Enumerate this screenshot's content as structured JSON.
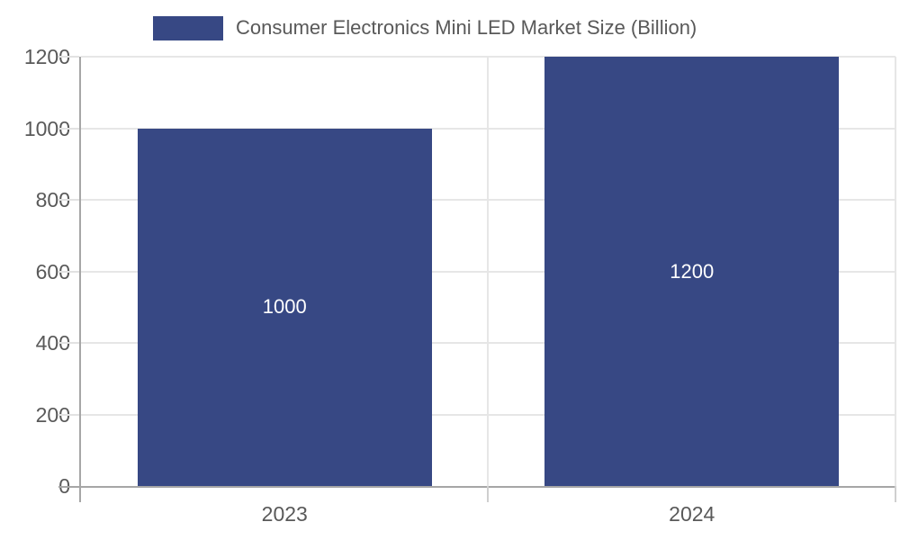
{
  "legend": {
    "label": "Consumer Electronics Mini LED Market Size (Billion)"
  },
  "chart_data": {
    "type": "bar",
    "title": "Consumer Electronics Mini LED Market Size (Billion)",
    "categories": [
      "2023",
      "2024"
    ],
    "values": [
      1000,
      1200
    ],
    "data_labels": [
      "1000",
      "1200"
    ],
    "xlabel": "",
    "ylabel": "",
    "ylim": [
      0,
      1200
    ],
    "y_ticks": [
      0,
      200,
      400,
      600,
      800,
      1000,
      1200
    ],
    "grid": true,
    "legend_position": "top",
    "colors": {
      "bar": "#374884",
      "bar_label": "#ffffff",
      "axis_text": "#595959",
      "legend_text": "#595959",
      "gridline": "#e6e6e6",
      "axis_line": "#a6a6a6"
    }
  }
}
